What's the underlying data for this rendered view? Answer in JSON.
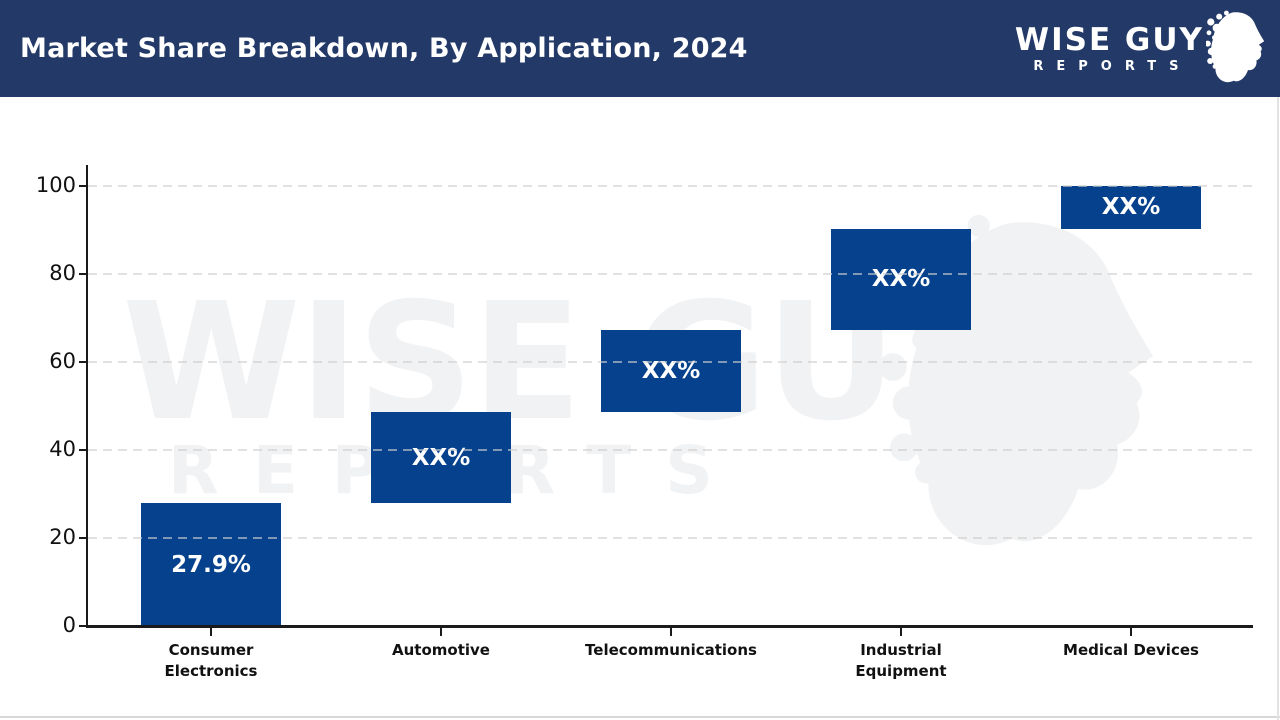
{
  "header": {
    "title": "Market Share Breakdown, By Application, 2024",
    "logo": {
      "line1": "WISE GUY",
      "line2": "REPORTS"
    }
  },
  "watermark": {
    "line1": "WISE GUY",
    "line2": "REPORTS"
  },
  "colors": {
    "header_bg": "#233a68",
    "bar": "#05418c",
    "bar_label": "#ffffff",
    "axis": "#1a1a1a",
    "grid": "#cfcfcf",
    "watermark": "#f1f2f4"
  },
  "chart_data": {
    "type": "bar",
    "subtype": "floating-waterfall",
    "title": "Market Share Breakdown, By Application, 2024",
    "xlabel": "",
    "ylabel": "",
    "ylim": [
      0,
      100
    ],
    "yticks": [
      0,
      20,
      40,
      60,
      80,
      100
    ],
    "grid": "horizontal-dashed",
    "legend": "none",
    "categories": [
      "Consumer Electronics",
      "Automotive",
      "Telecommunications",
      "Industrial Equipment",
      "Medical Devices"
    ],
    "category_lines": [
      [
        "Consumer",
        "Electronics"
      ],
      [
        "Automotive"
      ],
      [
        "Telecommunications"
      ],
      [
        "Industrial",
        "Equipment"
      ],
      [
        "Medical Devices"
      ]
    ],
    "series": [
      {
        "name": "Market Share",
        "segments": [
          {
            "category": "Consumer Electronics",
            "start": 0,
            "end": 27.9,
            "label": "27.9%"
          },
          {
            "category": "Automotive",
            "start": 27.9,
            "end": 48.6,
            "label": "XX%"
          },
          {
            "category": "Telecommunications",
            "start": 48.6,
            "end": 67.3,
            "label": "XX%"
          },
          {
            "category": "Industrial Equipment",
            "start": 67.3,
            "end": 90.3,
            "label": "XX%"
          },
          {
            "category": "Medical Devices",
            "start": 90.3,
            "end": 100,
            "label": "XX%"
          }
        ]
      }
    ]
  }
}
